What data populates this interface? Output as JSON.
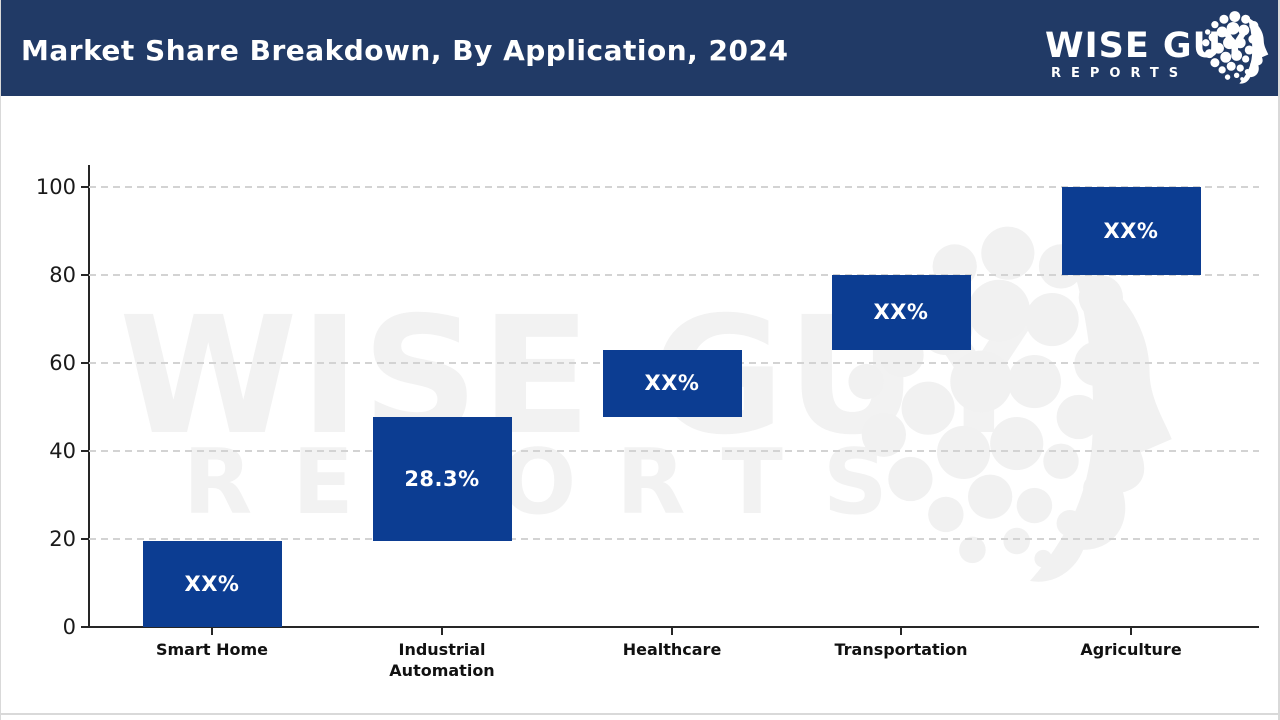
{
  "header": {
    "title": "Market Share Breakdown, By Application, 2024",
    "logo": {
      "line1": "WISE GUY",
      "line2": "REPORTS"
    }
  },
  "watermark": {
    "line1": "WISE GUY",
    "line2": "REPORTS"
  },
  "chart_data": {
    "type": "bar",
    "subtype": "floating-waterfall",
    "title": "Market Share Breakdown, By Application, 2024",
    "categories": [
      "Smart Home",
      "Industrial Automation",
      "Healthcare",
      "Transportation",
      "Agriculture"
    ],
    "segments": [
      {
        "category": "Smart Home",
        "start": 0,
        "end": 19.5,
        "label": "XX%"
      },
      {
        "category": "Industrial Automation",
        "start": 19.5,
        "end": 47.8,
        "label": "28.3%"
      },
      {
        "category": "Healthcare",
        "start": 47.8,
        "end": 63.0,
        "label": "XX%"
      },
      {
        "category": "Transportation",
        "start": 63.0,
        "end": 80.0,
        "label": "XX%"
      },
      {
        "category": "Agriculture",
        "start": 80.0,
        "end": 100.0,
        "label": "XX%"
      }
    ],
    "yticks": [
      0,
      20,
      40,
      60,
      80,
      100
    ],
    "ylim": [
      0,
      100
    ],
    "xlabel": "",
    "ylabel": "",
    "grid": "horizontal-dashed",
    "legend": "none",
    "bar_color": "#0C3D92",
    "bar_label_color": "#ffffff",
    "axis_color": "#262626",
    "header_color": "#213A66"
  }
}
